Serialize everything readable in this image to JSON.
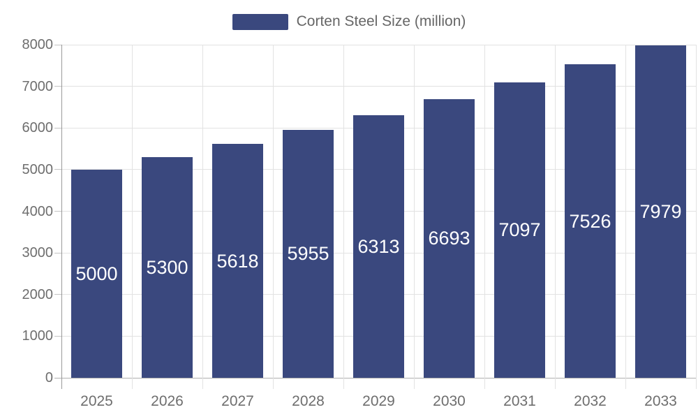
{
  "legend": {
    "label": "Corten Steel Size (million)"
  },
  "chart_data": {
    "type": "bar",
    "title": "Corten Steel Size (million)",
    "categories": [
      "2025",
      "2026",
      "2027",
      "2028",
      "2029",
      "2030",
      "2031",
      "2032",
      "2033"
    ],
    "series": [
      {
        "name": "Corten Steel Size (million)",
        "values": [
          5000,
          5300,
          5618,
          5955,
          6313,
          6693,
          7097,
          7526,
          7979
        ]
      }
    ],
    "xlabel": "",
    "ylabel": "",
    "ylim": [
      0,
      8000
    ],
    "ytick_interval": 1000,
    "yticks": [
      0,
      1000,
      2000,
      3000,
      4000,
      5000,
      6000,
      7000,
      8000
    ],
    "grid": true,
    "legend_position": "top-center",
    "value_label_position": "inside-center"
  },
  "style": {
    "bar_color": "#3A487E",
    "value_label_color": "#ffffff",
    "axis_text_color": "#6e6e6e",
    "legend_text_color": "#666666",
    "gridline_color": "#e2e2e2",
    "y_axis_line_color": "#999999",
    "x_axis_line_color": "#b0b0b0",
    "background_color": "#ffffff"
  }
}
